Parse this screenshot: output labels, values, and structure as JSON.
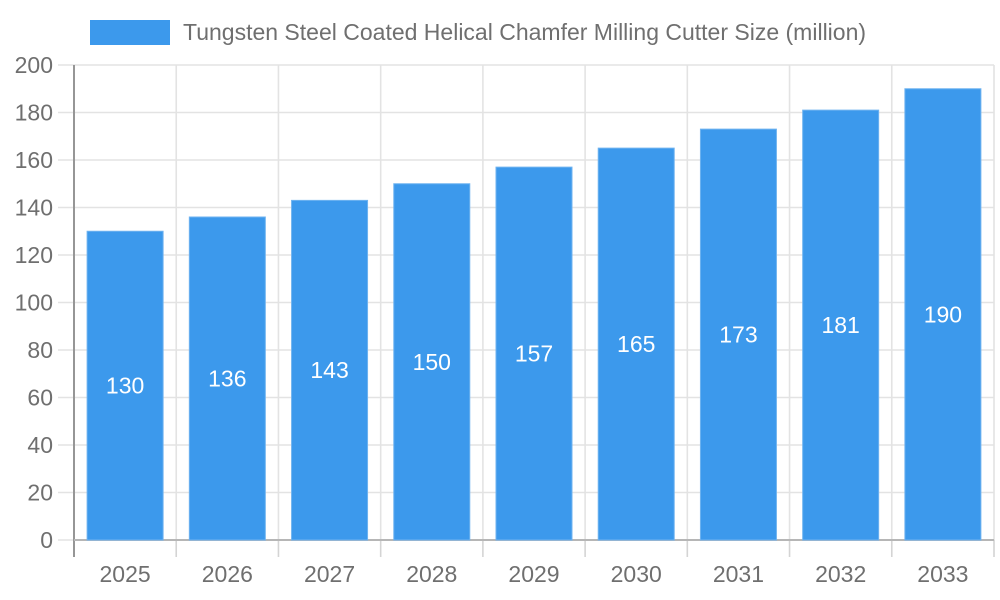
{
  "legend": {
    "label": "Tungsten Steel Coated Helical Chamfer Milling Cutter Size (million)"
  },
  "chart_data": {
    "type": "bar",
    "title": "",
    "xlabel": "",
    "ylabel": "",
    "categories": [
      "2025",
      "2026",
      "2027",
      "2028",
      "2029",
      "2030",
      "2031",
      "2032",
      "2033"
    ],
    "values": [
      130,
      136,
      143,
      150,
      157,
      165,
      173,
      181,
      190
    ],
    "series_name": "Tungsten Steel Coated Helical Chamfer Milling Cutter Size (million)",
    "ylim": [
      0,
      200
    ],
    "ytick_step": 20,
    "ytick_labels": [
      "0",
      "20",
      "40",
      "60",
      "80",
      "100",
      "120",
      "140",
      "160",
      "180",
      "200"
    ],
    "grid": true,
    "legend_position": "top-left",
    "bar_color": "#3C99EC",
    "bar_edge_color": "#6FB3F0",
    "value_label_color": "#ffffff",
    "axis_text_color": "#6F6F6F",
    "grid_color": "#E3E3E3",
    "tick_color": "#D4D4D4",
    "y_axis_line_color": "#969696",
    "x_axis_line_color": "#B6B6B6",
    "background_color": "#ffffff"
  }
}
